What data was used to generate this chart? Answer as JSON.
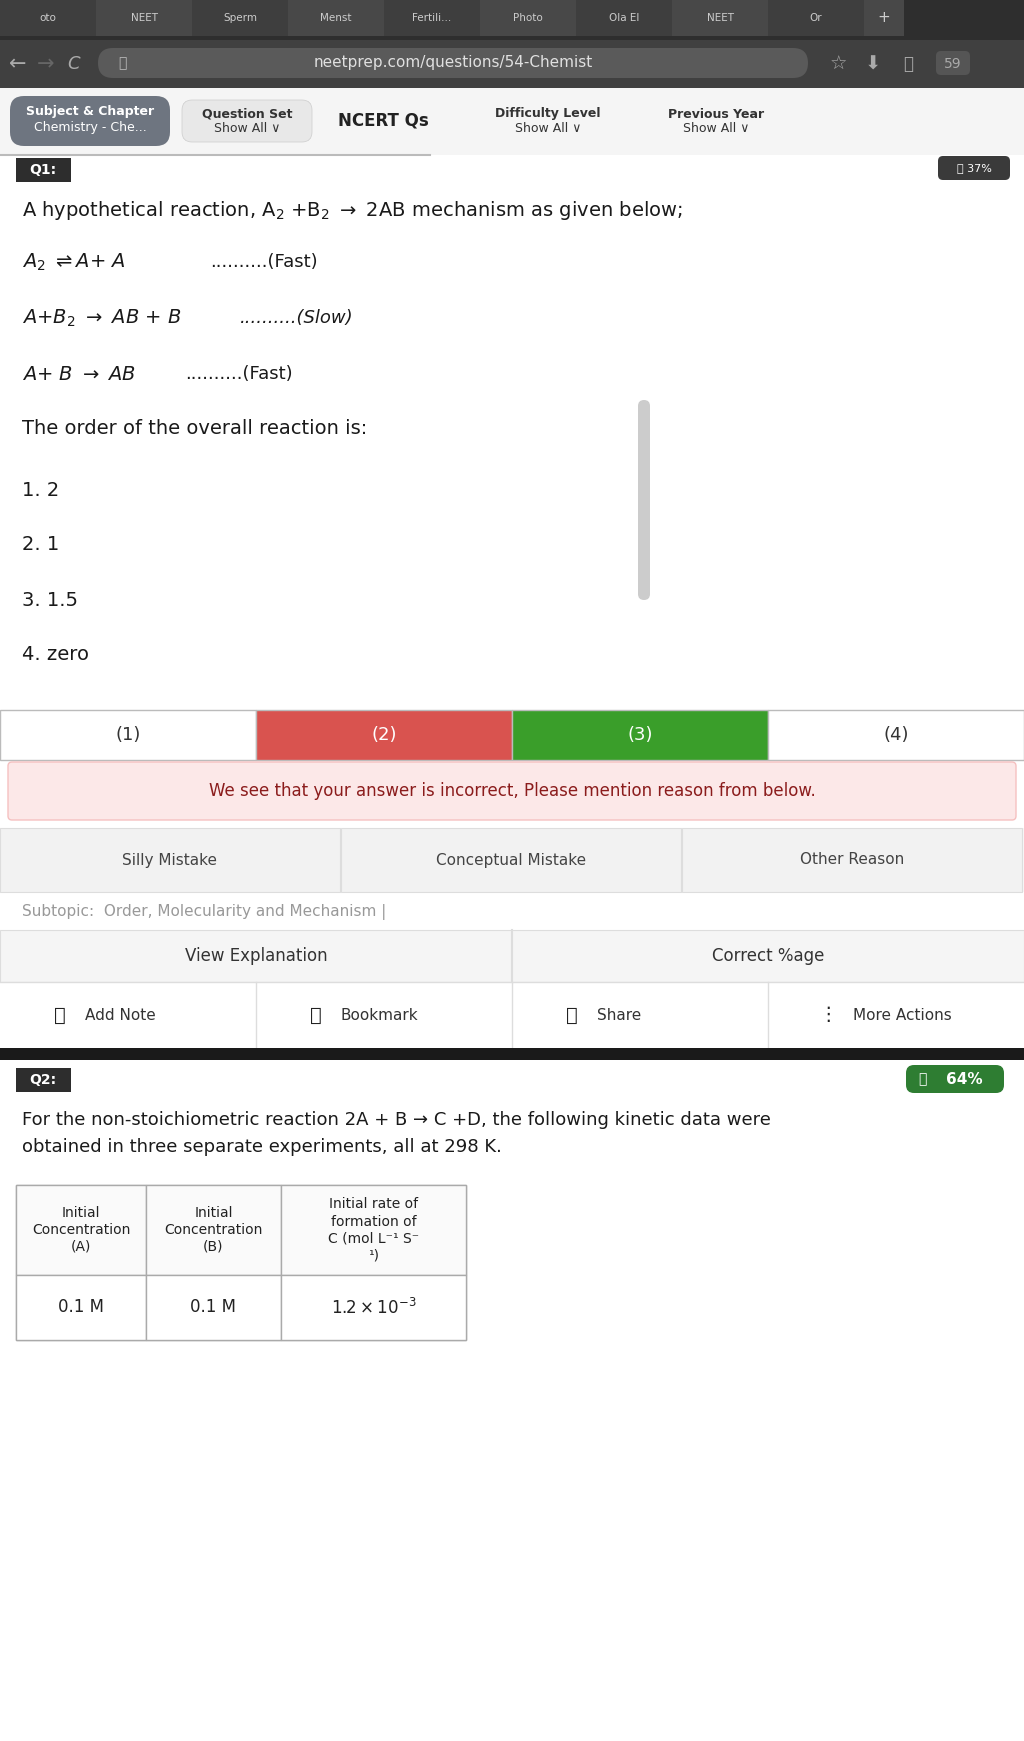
{
  "url": "neetprep.com/questions/54-Chemist",
  "tab_labels": [
    "oto",
    "NEET",
    "Sperm",
    "Menst",
    "Fertili...",
    "Photo",
    "Ola El",
    "NEET",
    "Or"
  ],
  "q1_question": "A hypothetical reaction, A$_2$ +B$_2$ → 2AB mechanism as given below;",
  "step1_lhs": "A$_2$ ⇌A+ A",
  "step1_rhs": "..........(Fast)",
  "step2_lhs": "A+B$_2$ → AB + B",
  "step2_rhs": "..........(Slow)",
  "step3_lhs": "A+ B → AB",
  "step3_rhs": "..........(Fast)",
  "order_question": "The order of the overall reaction is:",
  "options": [
    "1. 2",
    "2. 1",
    "3. 1.5",
    "4. zero"
  ],
  "answer_buttons": [
    "(1)",
    "(2)",
    "(3)",
    "(4)"
  ],
  "answer_colors": [
    "#ffffff",
    "#d9534f",
    "#3a9e2a",
    "#ffffff"
  ],
  "answer_text_colors": [
    "#333333",
    "#ffffff",
    "#ffffff",
    "#333333"
  ],
  "incorrect_msg": "We see that your answer is incorrect, Please mention reason from below.",
  "incorrect_bg": "#fce8e8",
  "incorrect_border": "#f5c0c0",
  "incorrect_text_color": "#8b1c1c",
  "mistake_options": [
    "Silly Mistake",
    "Conceptual Mistake",
    "Other Reason"
  ],
  "subtopic": "Subtopic:  Order, Molecularity and Mechanism |",
  "q2_label": "Q2:",
  "q2_badge": "64%",
  "q2_q1": "For the non-stoichiometric reaction 2A + B → C +D, the following kinetic data were",
  "q2_q2": "obtained in three separate experiments, all at 298 K.",
  "col_headers": [
    "Initial\nConcentration\n(A)",
    "Initial\nConcentration\n(B)",
    "Initial rate of\nformation of\nC (mol L⁻¹ S⁻\n¹)"
  ],
  "row1": [
    "0.1 M",
    "0.1 M",
    ""
  ],
  "nav_bg": "#2e2e2e",
  "addr_bg": "#404040",
  "url_bar_bg": "#5a5a5a",
  "page_bg": "#f0f0f0",
  "white": "#ffffff",
  "filter_bg": "#f5f5f5",
  "pill_bg": "#6e7580",
  "q_border": "#cccccc",
  "gray_text": "#888888",
  "dark_text": "#1a1a1a",
  "sep_color": "#cccccc"
}
